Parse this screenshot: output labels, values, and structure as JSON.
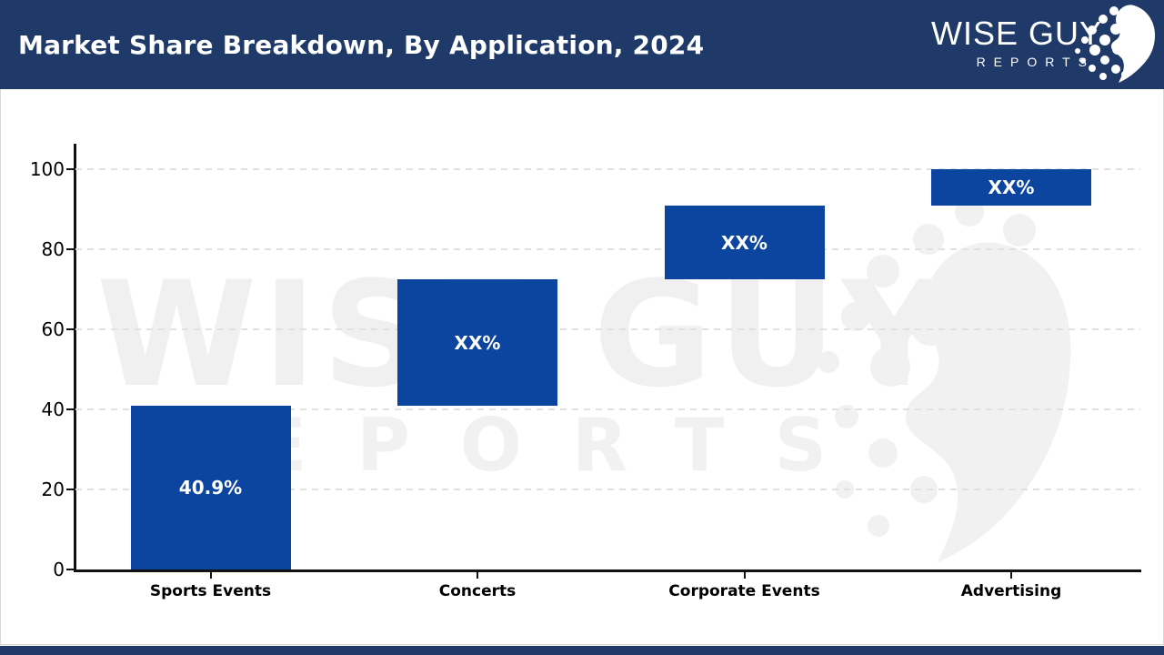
{
  "header": {
    "title": "Market Share Breakdown, By Application, 2024",
    "bg_color": "#1f3a68",
    "text_color": "#ffffff",
    "logo": {
      "line1": "WISE GUY",
      "line2": "REPORTS"
    }
  },
  "watermark": {
    "line1": "WISE GUY",
    "line2": "REPORTS"
  },
  "chart_data": {
    "type": "bar",
    "subtype": "waterfall",
    "title": "Market Share Breakdown, By Application, 2024",
    "categories": [
      "Sports Events",
      "Concerts",
      "Corporate Events",
      "Advertising"
    ],
    "segments": [
      {
        "category": "Sports Events",
        "start": 0,
        "end": 40.9,
        "label": "40.9%"
      },
      {
        "category": "Concerts",
        "start": 40.9,
        "end": 72.5,
        "label": "XX%"
      },
      {
        "category": "Corporate Events",
        "start": 72.5,
        "end": 90.9,
        "label": "XX%"
      },
      {
        "category": "Advertising",
        "start": 90.9,
        "end": 100,
        "label": "XX%"
      }
    ],
    "values_approx": [
      40.9,
      31.6,
      18.4,
      9.1
    ],
    "yticks": [
      0,
      20,
      40,
      60,
      80,
      100
    ],
    "ylim": [
      0,
      106
    ],
    "xlabel": "",
    "ylabel": "",
    "grid": "horizontal dashed",
    "legend": "none",
    "bar_color": "#0c45a0",
    "bar_label_color": "#ffffff",
    "axis_color": "#111111",
    "gridline_color": "#e1e1e1"
  },
  "footer": {
    "bg_color": "#1f3a68"
  }
}
